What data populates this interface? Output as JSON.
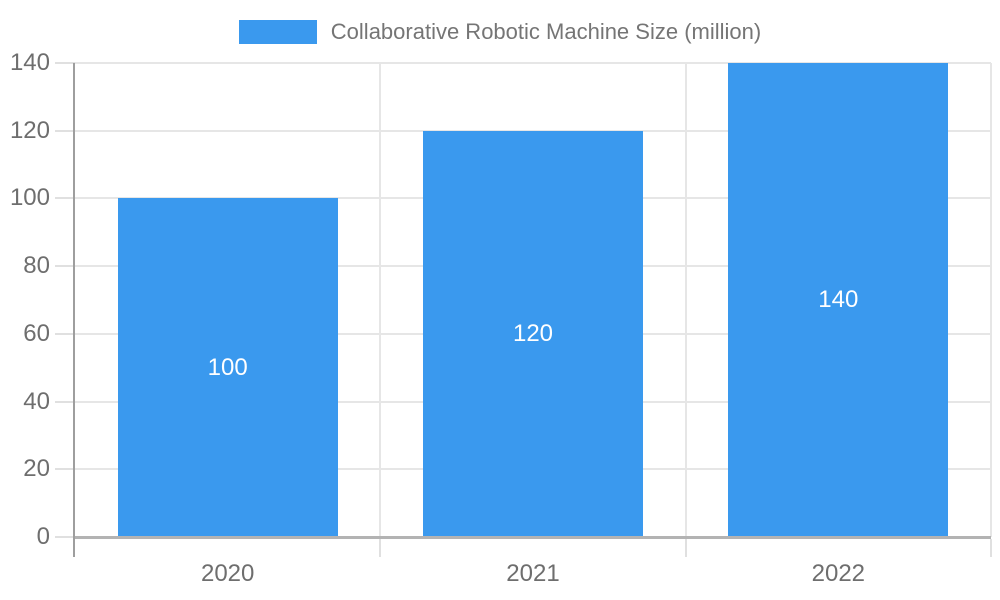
{
  "chart_data": {
    "type": "bar",
    "title": "Collaborative Robotic Machine Size (million)",
    "legend": {
      "position": "top-center",
      "entries": [
        "Collaborative Robotic Machine Size (million)"
      ]
    },
    "categories": [
      "2020",
      "2021",
      "2022"
    ],
    "series": [
      {
        "name": "Collaborative Robotic Machine Size (million)",
        "values": [
          100,
          120,
          140
        ]
      }
    ],
    "value_labels": [
      "100",
      "120",
      "140"
    ],
    "xlabel": "",
    "ylabel": "",
    "ylim": [
      0,
      140
    ],
    "yticks": [
      0,
      20,
      40,
      60,
      80,
      100,
      120,
      140
    ],
    "grid": true,
    "colors": {
      "bar": "#3a99ee",
      "value_label": "#ffffff",
      "axis_text": "#6e6e6e",
      "legend_text": "#757575",
      "gridline": "#e6e6e6",
      "tick": "#e0e0e0",
      "x_axis_line": "#b3b3b3",
      "y_axis_line": "#9e9e9e"
    }
  }
}
